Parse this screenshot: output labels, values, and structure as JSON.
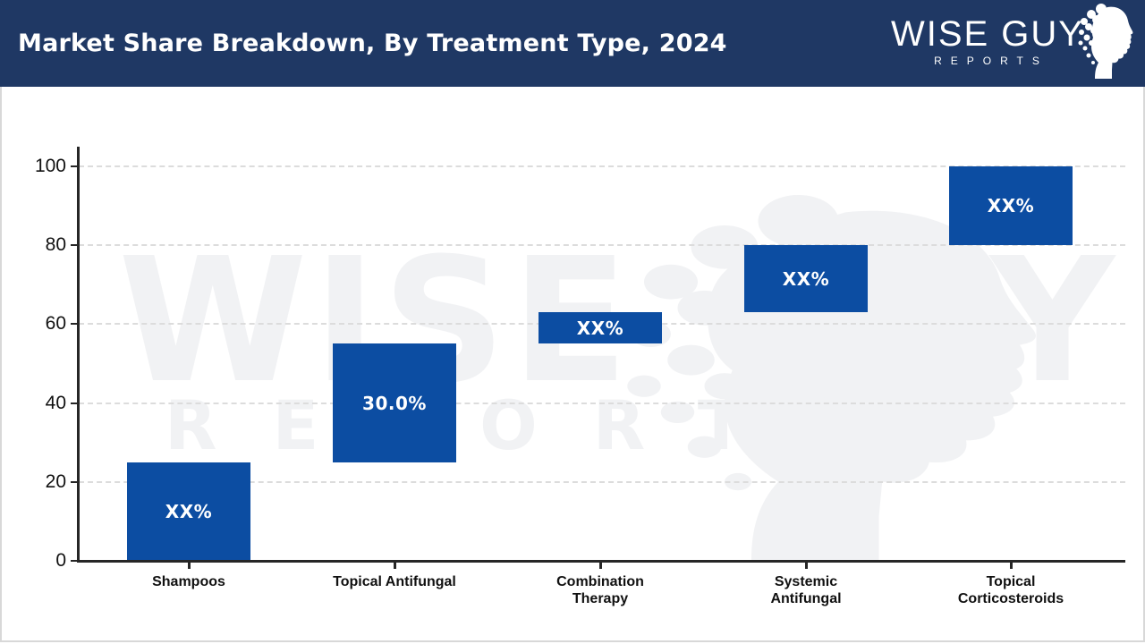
{
  "header": {
    "title": "Market Share Breakdown, By Treatment Type, 2024",
    "logo": {
      "name": "WISE GUY",
      "subtitle": "REPORTS"
    }
  },
  "watermark": {
    "name": "WISE GUY",
    "subtitle": "REPORTS"
  },
  "chart_data": {
    "type": "bar",
    "subtype": "waterfall",
    "title": "Market Share Breakdown, By Treatment Type, 2024",
    "xlabel": "",
    "ylabel": "",
    "categories": [
      "Shampoos",
      "Topical Antifungal",
      "Combination Therapy",
      "Systemic Antifungal",
      "Topical Corticosteroids"
    ],
    "segments": [
      {
        "category": "Shampoos",
        "category_lines": [
          "Shampoos"
        ],
        "start": 0,
        "end": 25,
        "value": 25,
        "label": "XX%"
      },
      {
        "category": "Topical Antifungal",
        "category_lines": [
          "Topical Antifungal"
        ],
        "start": 25,
        "end": 55,
        "value": 30,
        "label": "30.0%"
      },
      {
        "category": "Combination Therapy",
        "category_lines": [
          "Combination",
          "Therapy"
        ],
        "start": 55,
        "end": 63,
        "value": 8,
        "label": "XX%"
      },
      {
        "category": "Systemic Antifungal",
        "category_lines": [
          "Systemic",
          "Antifungal"
        ],
        "start": 63,
        "end": 80,
        "value": 17,
        "label": "XX%"
      },
      {
        "category": "Topical Corticosteroids",
        "category_lines": [
          "Topical",
          "Corticosteroids"
        ],
        "start": 80,
        "end": 100,
        "value": 20,
        "label": "XX%"
      }
    ],
    "yticks": [
      0,
      20,
      40,
      60,
      80,
      100
    ],
    "ylim": [
      0,
      105
    ],
    "grid": "horizontal-dashed",
    "legend": null
  },
  "colors": {
    "header_bg": "#1F3864",
    "bar": "#0C4DA2",
    "grid": "#DCDCDC",
    "axis": "#262626",
    "tick_text": "#111111",
    "bar_label_text": "#FFFFFF",
    "title_text": "#FFFFFF",
    "watermark": "#F1F2F4",
    "frame_border": "#D8D8D8"
  }
}
